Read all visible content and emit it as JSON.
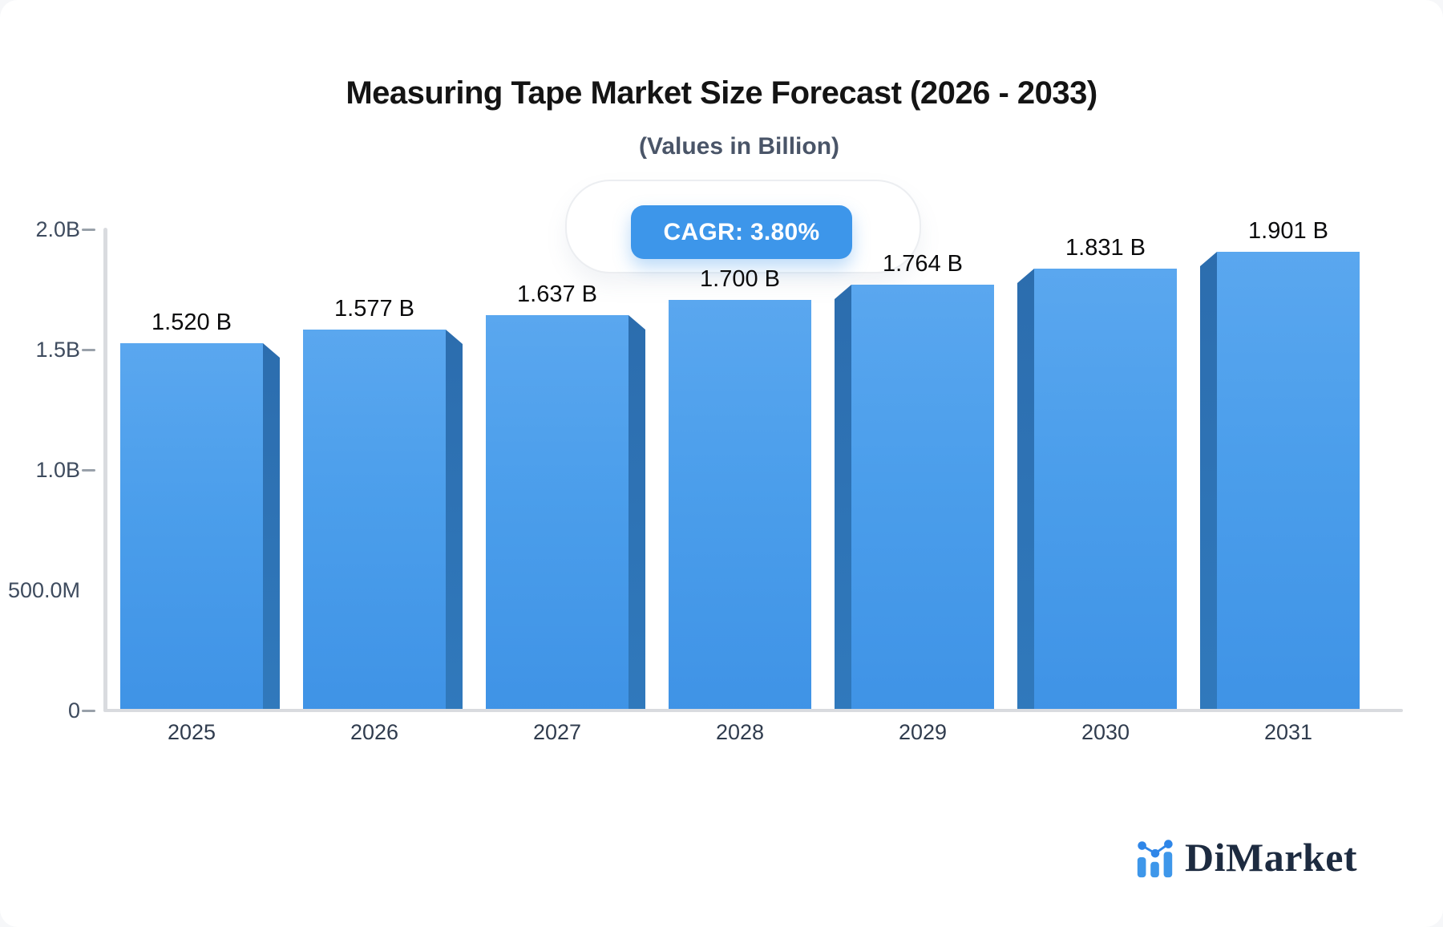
{
  "header": {
    "title": "Measuring Tape Market Size Forecast (2026 - 2033)",
    "subtitle": "(Values in Billion)"
  },
  "badge": {
    "label": "CAGR: 3.80%"
  },
  "chart_data": {
    "type": "bar",
    "title": "Measuring Tape Market Size Forecast (2026 - 2033)",
    "subtitle": "(Values in Billion)",
    "categories": [
      "2025",
      "2026",
      "2027",
      "2028",
      "2029",
      "2030",
      "2031"
    ],
    "values": [
      1.52,
      1.577,
      1.637,
      1.7,
      1.764,
      1.831,
      1.901
    ],
    "value_labels": [
      "1.520 B",
      "1.577 B",
      "1.637 B",
      "1.700 B",
      "1.764 B",
      "1.831 B",
      "1.901 B"
    ],
    "xlabel": "",
    "ylabel": "",
    "ylim": [
      0,
      2.0
    ],
    "yticks": [
      {
        "label": "2.0B",
        "value": 2.0,
        "dash": true
      },
      {
        "label": "1.5B",
        "value": 1.5,
        "dash": true
      },
      {
        "label": "1.0B",
        "value": 1.0,
        "dash": true
      },
      {
        "label": "500.0M",
        "value": 0.5,
        "dash": false
      },
      {
        "label": "0",
        "value": 0.0,
        "dash": true
      }
    ],
    "grid": false,
    "legend": false,
    "annotation": "CAGR: 3.80%",
    "bar_style": "3d-beveled"
  },
  "logo": {
    "text": "DiMarket",
    "icon": "mini-bar-line-chart-icon"
  },
  "colors": {
    "accent_blue": "#3d96ea",
    "bar_face_top": "#5aa7ef",
    "bar_face_bottom": "#3f93e6",
    "bar_side": "#2e73b5",
    "axis_line": "#d9dbdf",
    "tick_dash": "#99a1aa",
    "axis_label": "#3e4b5e",
    "category_label": "#303c4e",
    "value_label": "#0b0b0c",
    "title": "#141414",
    "subtitle": "#4a5568",
    "badge_text": "#ffffff",
    "logo_navy": "#1d2b40",
    "logo_blue": "#3e97ea"
  }
}
